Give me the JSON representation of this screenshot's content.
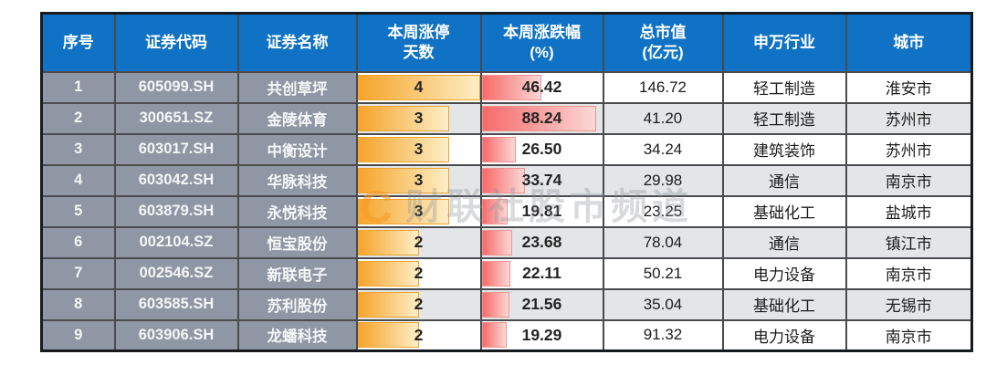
{
  "watermark": {
    "logo": "C",
    "text": "财联社股市频道"
  },
  "colors": {
    "header_bg": "#0f72c4",
    "header_text": "#ffffff",
    "id_cols_bg": "#8e97a3",
    "id_cols_text": "#f4f6f8",
    "row_bg": "#ffffff",
    "row_alt_bg": "#e3e5e6",
    "grid_line": "#494b4e",
    "outer_border": "#171a1f",
    "orange_bar_from": "#f7a42a",
    "orange_bar_to": "#fdeec6",
    "orange_bar_border": "#eda42e",
    "red_bar_from": "#f76a69",
    "red_bar_to": "#fbd8d6",
    "red_bar_border": "#f19392",
    "watermark_orange": "#f59b25",
    "watermark_gray": "#8a8f96"
  },
  "chart_data": {
    "type": "table",
    "title": "",
    "legend_position": "none",
    "grid": true,
    "embedded_bars": [
      {
        "column": "本周涨停天数",
        "style": "orange-gradient-data-bar",
        "axis_min": 0,
        "axis_max": 4
      },
      {
        "column": "本周涨跌幅(%)",
        "style": "red-gradient-data-bar",
        "axis_min": 0,
        "axis_max": 92.9
      }
    ],
    "columns": [
      {
        "key": "index",
        "lines": [
          "序号"
        ]
      },
      {
        "key": "code",
        "lines": [
          "证券代码"
        ]
      },
      {
        "key": "name",
        "lines": [
          "证券名称"
        ]
      },
      {
        "key": "days",
        "lines": [
          "本周涨停",
          "天数"
        ],
        "bar": "orange",
        "bar_axis_max": 4
      },
      {
        "key": "change",
        "lines": [
          "本周涨跌幅",
          "(%)"
        ],
        "bar": "red",
        "bar_axis_max": 92.9
      },
      {
        "key": "mcap",
        "lines": [
          "总市值",
          "(亿元)"
        ]
      },
      {
        "key": "industry",
        "lines": [
          "申万行业"
        ]
      },
      {
        "key": "city",
        "lines": [
          "城市"
        ]
      }
    ],
    "rows": [
      {
        "index": "1",
        "code": "605099.SH",
        "name": "共创草坪",
        "days": "4",
        "change": "46.42",
        "mcap": "146.72",
        "industry": "轻工制造",
        "city": "淮安市"
      },
      {
        "index": "2",
        "code": "300651.SZ",
        "name": "金陵体育",
        "days": "3",
        "change": "88.24",
        "mcap": "41.20",
        "industry": "轻工制造",
        "city": "苏州市"
      },
      {
        "index": "3",
        "code": "603017.SH",
        "name": "中衡设计",
        "days": "3",
        "change": "26.50",
        "mcap": "34.24",
        "industry": "建筑装饰",
        "city": "苏州市"
      },
      {
        "index": "4",
        "code": "603042.SH",
        "name": "华脉科技",
        "days": "3",
        "change": "33.74",
        "mcap": "29.98",
        "industry": "通信",
        "city": "南京市"
      },
      {
        "index": "5",
        "code": "603879.SH",
        "name": "永悦科技",
        "days": "3",
        "change": "19.81",
        "mcap": "23.25",
        "industry": "基础化工",
        "city": "盐城市"
      },
      {
        "index": "6",
        "code": "002104.SZ",
        "name": "恒宝股份",
        "days": "2",
        "change": "23.68",
        "mcap": "78.04",
        "industry": "通信",
        "city": "镇江市"
      },
      {
        "index": "7",
        "code": "002546.SZ",
        "name": "新联电子",
        "days": "2",
        "change": "22.11",
        "mcap": "50.21",
        "industry": "电力设备",
        "city": "南京市"
      },
      {
        "index": "8",
        "code": "603585.SH",
        "name": "苏利股份",
        "days": "2",
        "change": "21.56",
        "mcap": "35.04",
        "industry": "基础化工",
        "city": "无锡市"
      },
      {
        "index": "9",
        "code": "603906.SH",
        "name": "龙蟠科技",
        "days": "2",
        "change": "19.29",
        "mcap": "91.32",
        "industry": "电力设备",
        "city": "南京市"
      }
    ]
  }
}
